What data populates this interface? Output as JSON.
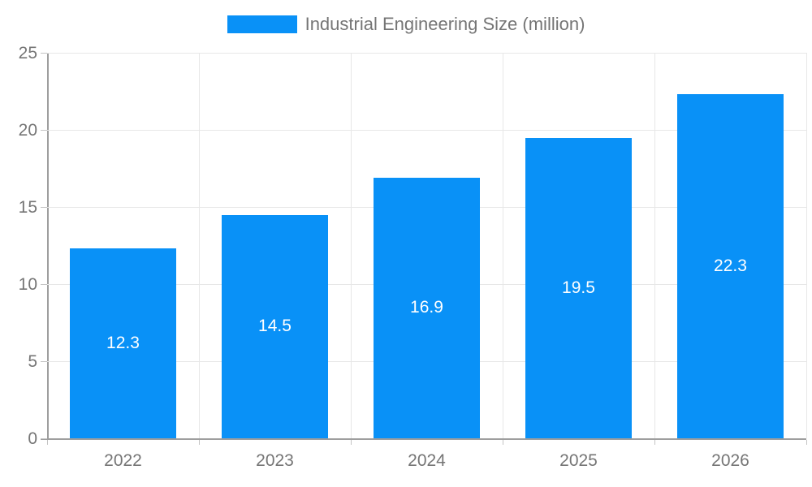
{
  "chart_data": {
    "type": "bar",
    "title": "",
    "legend": {
      "label": "Industrial Engineering Size (million)",
      "position": "top"
    },
    "categories": [
      "2022",
      "2023",
      "2024",
      "2025",
      "2026"
    ],
    "series": [
      {
        "name": "Industrial Engineering Size (million)",
        "values": [
          12.3,
          14.5,
          16.9,
          19.5,
          22.3
        ]
      }
    ],
    "value_labels": [
      "12.3",
      "14.5",
      "16.9",
      "19.5",
      "22.3"
    ],
    "y_ticks": [
      0,
      5,
      10,
      15,
      20,
      25
    ],
    "ylim": [
      0,
      25
    ],
    "xlabel": "",
    "ylabel": "",
    "grid": true,
    "colors": {
      "bar": "#0991f7",
      "bar_value_text": "#ffffff",
      "axis_text": "#757575",
      "legend_text": "#757575",
      "gridline": "#e7e7e7",
      "axis_line": "#9e9e9e",
      "tick_mark": "#c4c4c4",
      "background": "#ffffff"
    }
  }
}
